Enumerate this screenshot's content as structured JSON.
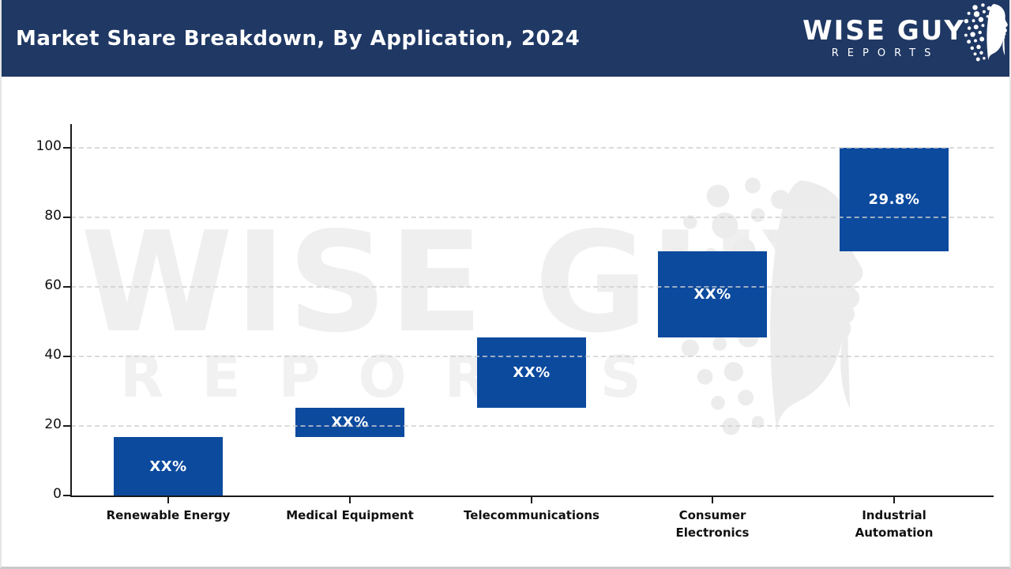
{
  "header": {
    "title": "Market Share Breakdown, By Application, 2024",
    "logo": {
      "line1": "WISE GUY",
      "line2": "REPORTS"
    }
  },
  "watermark": {
    "line1": "WISE GUY",
    "line2": "REPORTS"
  },
  "chart_data": {
    "type": "bar",
    "subtype": "waterfall",
    "title": "Market Share Breakdown, By Application, 2024",
    "xlabel": "",
    "ylabel": "",
    "ylim": [
      0,
      100
    ],
    "yticks": [
      0,
      20,
      40,
      60,
      80,
      100
    ],
    "grid": "horizontal-dashed",
    "legend": "none",
    "categories": [
      "Renewable Energy",
      "Medical Equipment",
      "Telecommunications",
      "Consumer\nElectronics",
      "Industrial\nAutomation"
    ],
    "segments": [
      {
        "category": "Renewable Energy",
        "start": 0,
        "end": 16.8,
        "value": 16.8,
        "label": "XX%"
      },
      {
        "category": "Medical Equipment",
        "start": 16.8,
        "end": 25.2,
        "value": 8.4,
        "label": "XX%"
      },
      {
        "category": "Telecommunications",
        "start": 25.2,
        "end": 45.5,
        "value": 20.3,
        "label": "XX%"
      },
      {
        "category": "Consumer Electronics",
        "start": 45.5,
        "end": 70.2,
        "value": 24.7,
        "label": "XX%"
      },
      {
        "category": "Industrial Automation",
        "start": 70.2,
        "end": 100,
        "value": 29.8,
        "label": "29.8%"
      }
    ],
    "bar_color": "#0c4a9e",
    "bar_label_color": "#ffffff"
  },
  "colors": {
    "header_bg": "#1f3864",
    "header_text": "#ffffff",
    "bar": "#0c4a9e",
    "gridline": "#cdcdcd",
    "axis": "#1a1a1a",
    "watermark": "#efefef",
    "page_bg": "#ffffff"
  }
}
